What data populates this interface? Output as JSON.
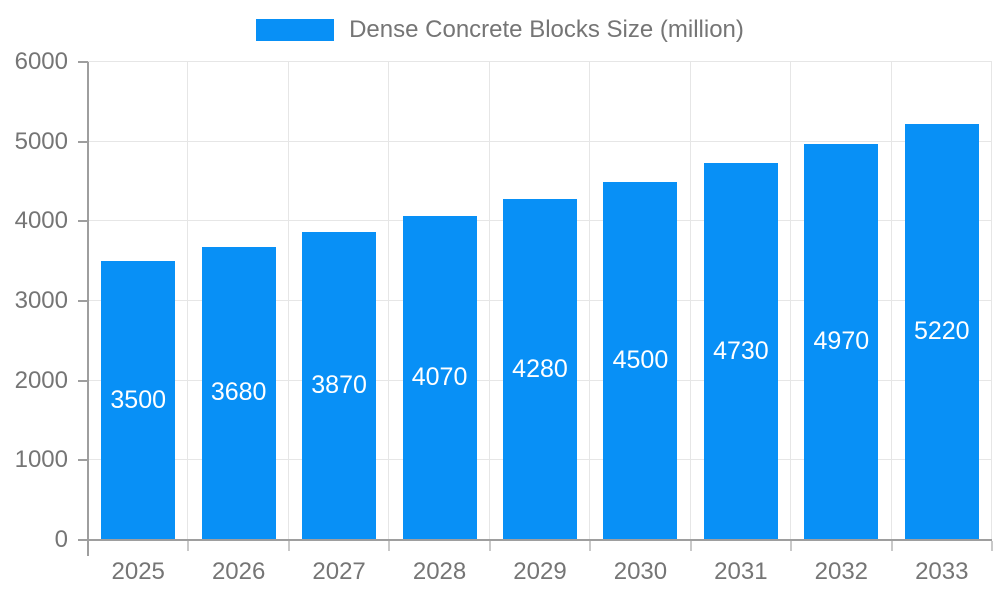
{
  "chart_data": {
    "type": "bar",
    "title": "",
    "series_name": "Dense Concrete Blocks Size (million)",
    "categories": [
      "2025",
      "2026",
      "2027",
      "2028",
      "2029",
      "2030",
      "2031",
      "2032",
      "2033"
    ],
    "values": [
      3500,
      3680,
      3870,
      4070,
      4280,
      4500,
      4730,
      4970,
      5220
    ],
    "xlabel": "",
    "ylabel": "",
    "ylim": [
      0,
      6000
    ],
    "yticks": [
      0,
      1000,
      2000,
      3000,
      4000,
      5000,
      6000
    ],
    "grid": true,
    "legend_position": "top",
    "value_label_position": "inside-center",
    "colors": {
      "bar": "#0890F6",
      "value_label": "#FFFFFF",
      "axis_text": "#757575",
      "grid_line": "#E6E6E6",
      "axis_line": "#9E9E9E",
      "minor_tick": "#C9C9C9",
      "background": "#FFFFFF"
    }
  }
}
